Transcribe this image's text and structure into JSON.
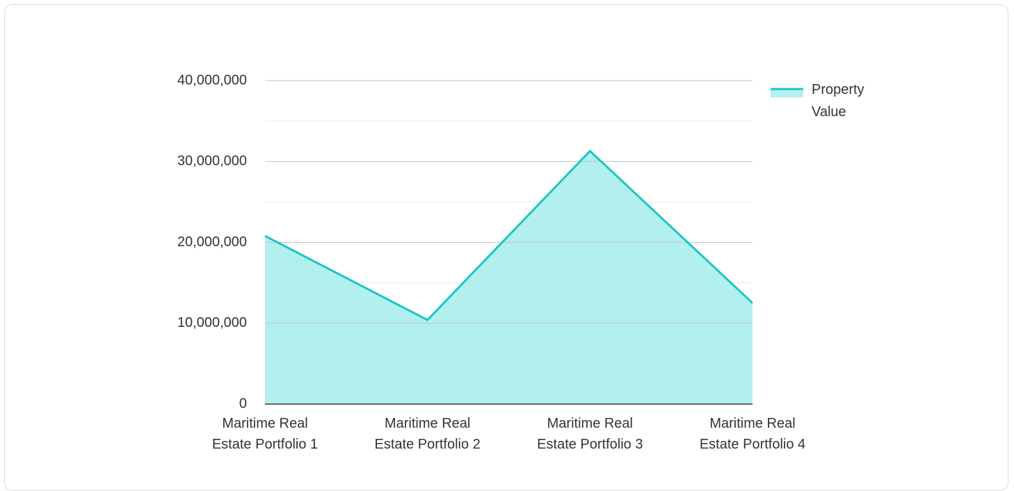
{
  "chart_data": {
    "type": "area",
    "categories": [
      "Maritime Real Estate Portfolio 1",
      "Maritime Real Estate Portfolio 2",
      "Maritime Real Estate Portfolio 3",
      "Maritime Real Estate Portfolio 4"
    ],
    "series": [
      {
        "name": "Property Value",
        "color": "#1ac6c6",
        "fill": "#b2efef",
        "values": [
          20800000,
          10400000,
          31300000,
          12500000
        ]
      }
    ],
    "ylim": [
      0,
      40000000
    ],
    "yticks": [
      0,
      {
        "value": 10000000,
        "label": "10,000,000"
      },
      {
        "value": 20000000,
        "label": "20,000,000"
      },
      {
        "value": 30000000,
        "label": "30,000,000"
      },
      {
        "value": 40000000,
        "label": "40,000,000"
      }
    ],
    "minor_yticks": [
      5000000,
      15000000,
      25000000,
      35000000
    ],
    "grid": true,
    "legend": "right"
  }
}
